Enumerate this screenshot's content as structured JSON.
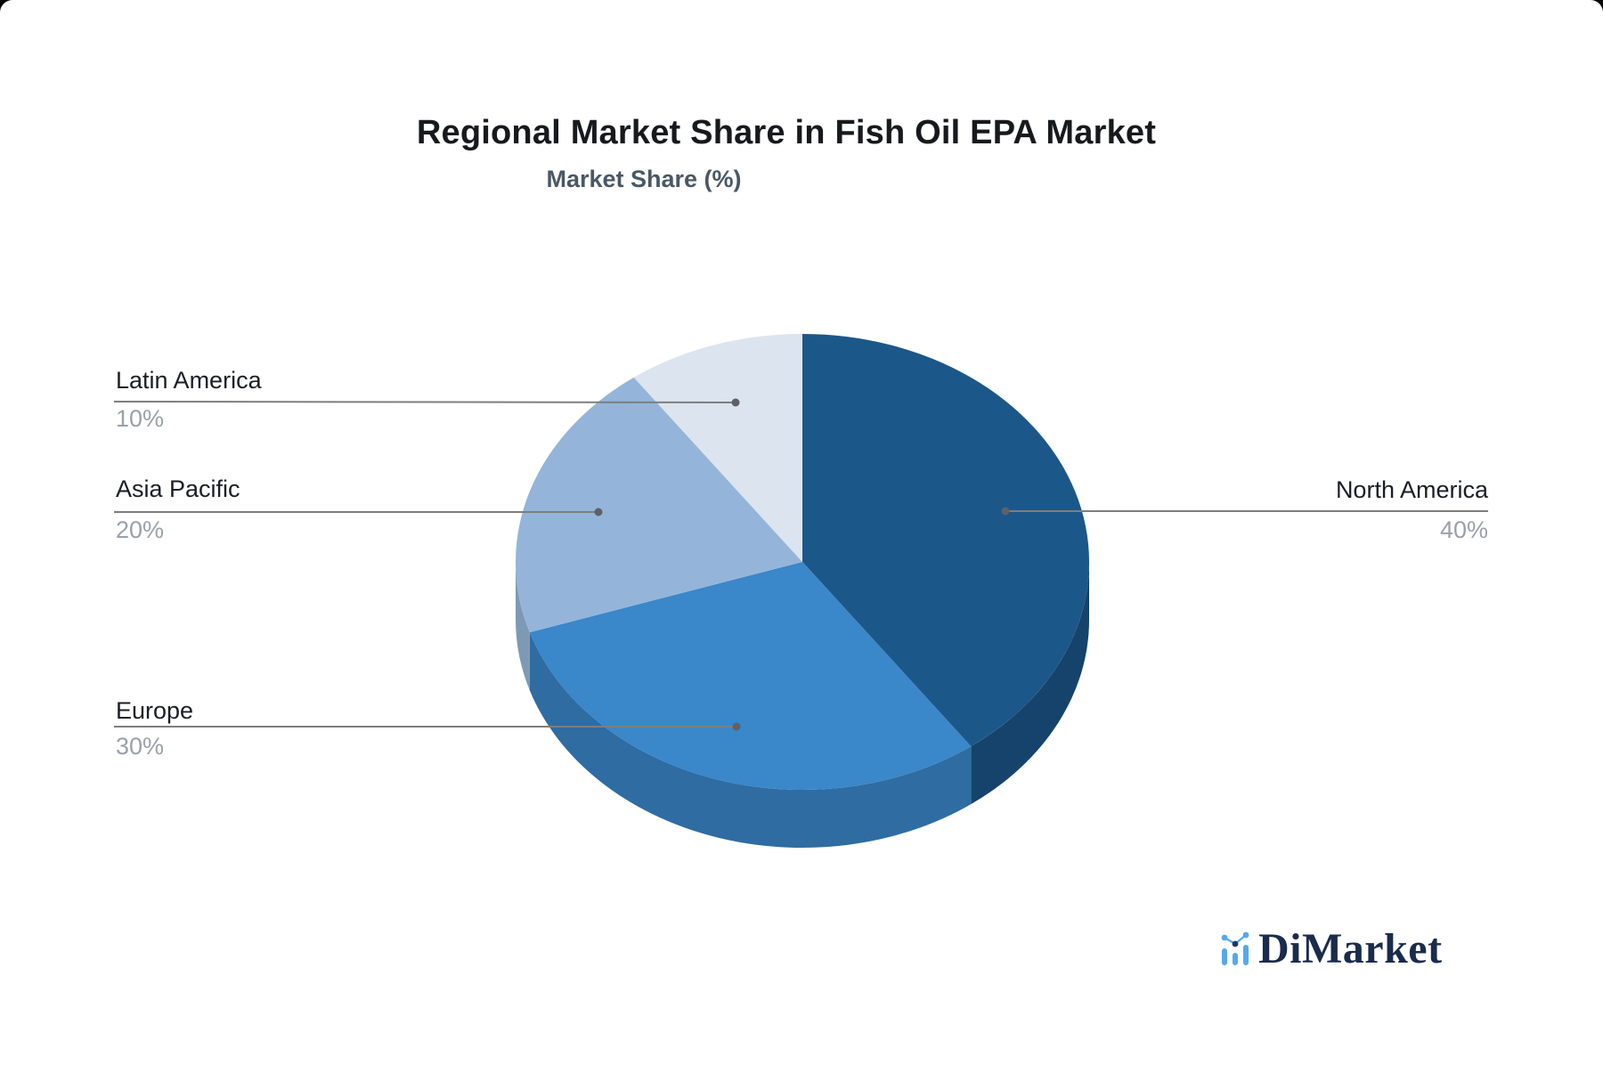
{
  "page": {
    "background": "#ffffff"
  },
  "header": {
    "title": "Regional Market Share in Fish Oil EPA Market",
    "subtitle": "Market Share (%)"
  },
  "brand": {
    "name": "DiMarket",
    "icon": "bar-line-chart-icon",
    "icon_bar_color": "#54a9ec",
    "icon_dot_dark_color": "#223a63",
    "text_color": "#1b2b4c"
  },
  "chart_data": {
    "type": "pie",
    "style": "3d",
    "title": "Regional Market Share in Fish Oil EPA Market",
    "subtitle": "Market Share (%)",
    "unit": "%",
    "direction": "clockwise",
    "start_angle_deg": 0,
    "labels": [
      "North America",
      "Europe",
      "Asia Pacific",
      "Latin America"
    ],
    "values": [
      40,
      30,
      20,
      10
    ],
    "pct_labels": [
      "40%",
      "30%",
      "20%",
      "10%"
    ],
    "colors": [
      "#1c5789",
      "#3a87c9",
      "#94b5d9",
      "#dce4ef"
    ],
    "side_colors": [
      "#15436b",
      "#2e6ca2",
      "#7e99b4",
      "#c2cedd"
    ],
    "callout_sides": [
      "right",
      "left",
      "left",
      "left"
    ],
    "leader_line_color": "#7e7e7e",
    "leader_dot_color": "#5d6266",
    "label_color": "#1b1e24",
    "value_color": "#9aa1a9",
    "legend_position": "callout-labels"
  }
}
